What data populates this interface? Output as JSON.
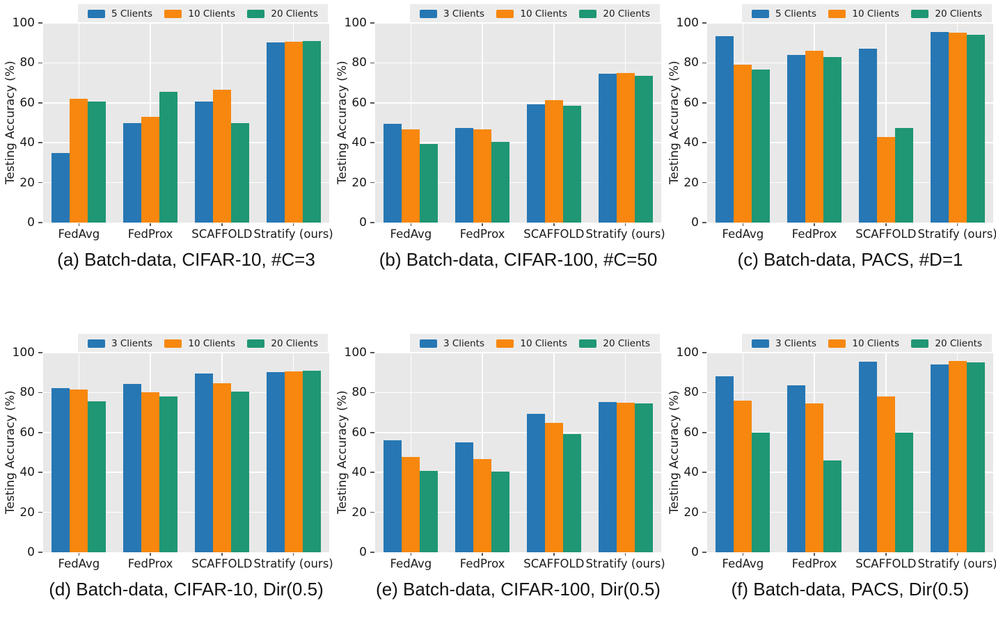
{
  "figure": {
    "ylabel": "Testing Accuracy (%)",
    "categories": [
      "FedAvg",
      "FedProx",
      "SCAFFOLD",
      "Stratify (ours)"
    ],
    "yticks": [
      0,
      20,
      40,
      60,
      80,
      100
    ],
    "colors": {
      "series_blue": "#2677b4",
      "series_orange": "#f7870e",
      "series_green": "#1f9674",
      "plot_background": "#e8e8e8",
      "legend_background": "#ececec",
      "gridline": "#ffffff",
      "text": "#1a1a1a"
    }
  },
  "chart_data": [
    {
      "id": "a",
      "type": "bar",
      "caption": "(a) Batch-data, CIFAR-10, #C=3",
      "ylabel": "Testing Accuracy (%)",
      "ylim": [
        0,
        100
      ],
      "yticks": [
        0,
        20,
        40,
        60,
        80,
        100
      ],
      "grid": true,
      "legend_position": "top",
      "categories": [
        "FedAvg",
        "FedProx",
        "SCAFFOLD",
        "Stratify (ours)"
      ],
      "series": [
        {
          "name": "5 Clients",
          "color": "#2677b4",
          "values": [
            35.0,
            50.0,
            60.5,
            90.3
          ]
        },
        {
          "name": "10 Clients",
          "color": "#f7870e",
          "values": [
            62.0,
            53.0,
            66.5,
            90.6
          ]
        },
        {
          "name": "20 Clients",
          "color": "#1f9674",
          "values": [
            60.5,
            65.5,
            50.0,
            91.0
          ]
        }
      ]
    },
    {
      "id": "b",
      "type": "bar",
      "caption": "(b) Batch-data, CIFAR-100, #C=50",
      "ylabel": "Testing Accuracy (%)",
      "ylim": [
        0,
        100
      ],
      "yticks": [
        0,
        20,
        40,
        60,
        80,
        100
      ],
      "grid": true,
      "legend_position": "top",
      "categories": [
        "FedAvg",
        "FedProx",
        "SCAFFOLD",
        "Stratify (ours)"
      ],
      "series": [
        {
          "name": "3 Clients",
          "color": "#2677b4",
          "values": [
            49.5,
            47.5,
            59.2,
            74.5
          ]
        },
        {
          "name": "10 Clients",
          "color": "#f7870e",
          "values": [
            46.8,
            46.8,
            61.2,
            74.8
          ]
        },
        {
          "name": "20 Clients",
          "color": "#1f9674",
          "values": [
            39.5,
            40.5,
            58.5,
            73.7
          ]
        }
      ]
    },
    {
      "id": "c",
      "type": "bar",
      "caption": "(c) Batch-data, PACS, #D=1",
      "ylabel": "Testing Accuracy (%)",
      "ylim": [
        0,
        100
      ],
      "yticks": [
        0,
        20,
        40,
        60,
        80,
        100
      ],
      "grid": true,
      "legend_position": "top",
      "categories": [
        "FedAvg",
        "FedProx",
        "SCAFFOLD",
        "Stratify (ours)"
      ],
      "series": [
        {
          "name": "5 Clients",
          "color": "#2677b4",
          "values": [
            93.5,
            84.0,
            87.0,
            95.5
          ]
        },
        {
          "name": "10 Clients",
          "color": "#f7870e",
          "values": [
            79.0,
            86.0,
            42.8,
            95.0
          ]
        },
        {
          "name": "20 Clients",
          "color": "#1f9674",
          "values": [
            76.5,
            83.0,
            47.5,
            94.0
          ]
        }
      ]
    },
    {
      "id": "d",
      "type": "bar",
      "caption": "(d) Batch-data, CIFAR-10, Dir(0.5)",
      "ylabel": "Testing Accuracy (%)",
      "ylim": [
        0,
        100
      ],
      "yticks": [
        0,
        20,
        40,
        60,
        80,
        100
      ],
      "grid": true,
      "legend_position": "top",
      "categories": [
        "FedAvg",
        "FedProx",
        "SCAFFOLD",
        "Stratify (ours)"
      ],
      "series": [
        {
          "name": "3 Clients",
          "color": "#2677b4",
          "values": [
            82.3,
            84.3,
            89.4,
            90.3
          ]
        },
        {
          "name": "10 Clients",
          "color": "#f7870e",
          "values": [
            81.4,
            80.3,
            84.7,
            90.6
          ]
        },
        {
          "name": "20 Clients",
          "color": "#1f9674",
          "values": [
            75.6,
            78.0,
            80.4,
            90.8
          ]
        }
      ]
    },
    {
      "id": "e",
      "type": "bar",
      "caption": "(e) Batch-data, CIFAR-100, Dir(0.5)",
      "ylabel": "Testing Accuracy (%)",
      "ylim": [
        0,
        100
      ],
      "yticks": [
        0,
        20,
        40,
        60,
        80,
        100
      ],
      "grid": true,
      "legend_position": "top",
      "categories": [
        "FedAvg",
        "FedProx",
        "SCAFFOLD",
        "Stratify (ours)"
      ],
      "series": [
        {
          "name": "3 Clients",
          "color": "#2677b4",
          "values": [
            56.0,
            55.0,
            69.2,
            75.2
          ]
        },
        {
          "name": "10 Clients",
          "color": "#f7870e",
          "values": [
            47.6,
            46.6,
            64.8,
            75.0
          ]
        },
        {
          "name": "20 Clients",
          "color": "#1f9674",
          "values": [
            40.7,
            40.4,
            59.2,
            74.7
          ]
        }
      ]
    },
    {
      "id": "f",
      "type": "bar",
      "caption": "(f) Batch-data, PACS, Dir(0.5)",
      "ylabel": "Testing Accuracy (%)",
      "ylim": [
        0,
        100
      ],
      "yticks": [
        0,
        20,
        40,
        60,
        80,
        100
      ],
      "grid": true,
      "legend_position": "top",
      "categories": [
        "FedAvg",
        "FedProx",
        "SCAFFOLD",
        "Stratify (ours)"
      ],
      "series": [
        {
          "name": "3 Clients",
          "color": "#2677b4",
          "values": [
            88.0,
            83.5,
            95.5,
            94.0
          ]
        },
        {
          "name": "10 Clients",
          "color": "#f7870e",
          "values": [
            76.0,
            74.5,
            78.0,
            96.0
          ]
        },
        {
          "name": "20 Clients",
          "color": "#1f9674",
          "values": [
            60.0,
            46.0,
            60.0,
            95.0
          ]
        }
      ]
    }
  ]
}
